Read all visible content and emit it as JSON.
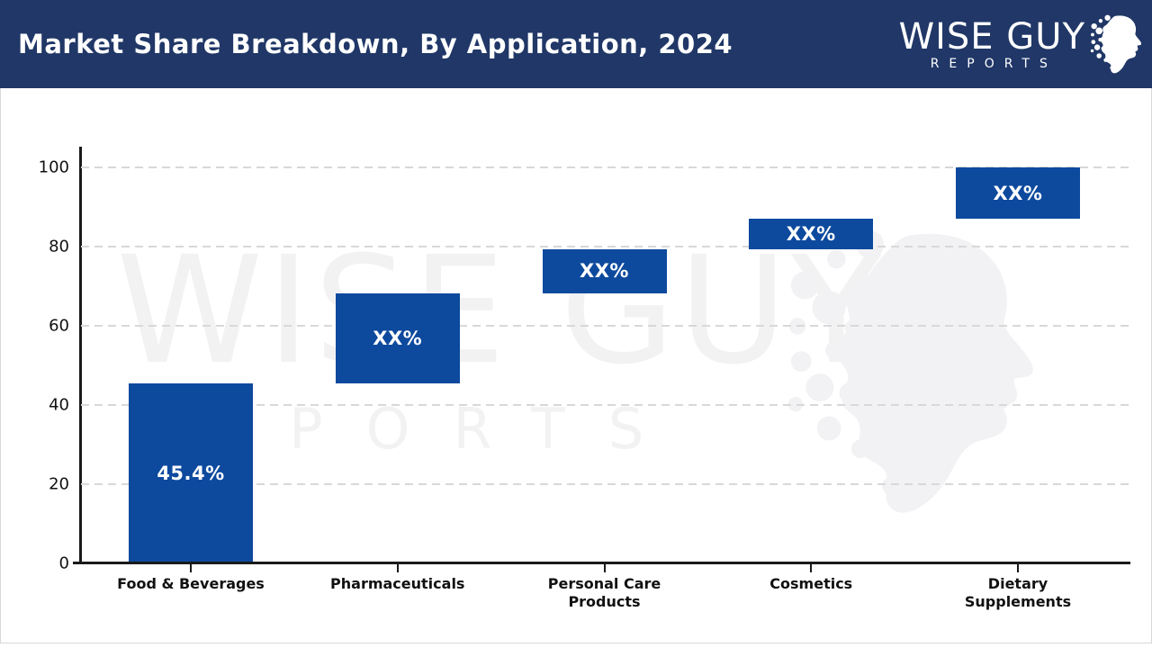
{
  "header": {
    "title": "Market Share Breakdown, By Application, 2024",
    "logo": {
      "line1": "WISE GUY",
      "line2": "REPORTS"
    }
  },
  "watermark": {
    "line1": "WISE GUY",
    "line2": "REPORTS"
  },
  "colors": {
    "header_bg": "#203767",
    "bar": "#0D4A9E",
    "bar_label": "#FFFFFF",
    "axis": "#1A1A1A",
    "grid": "#D8D8D8",
    "watermark": "#F2F2F3"
  },
  "chart_data": {
    "type": "bar",
    "subtype": "waterfall",
    "title": "Market Share Breakdown, By Application, 2024",
    "categories": [
      "Food & Beverages",
      "Pharmaceuticals",
      "Personal Care Products",
      "Cosmetics",
      "Dietary Supplements"
    ],
    "category_label_lines": [
      [
        "Food & Beverages"
      ],
      [
        "Pharmaceuticals"
      ],
      [
        "Personal Care",
        "Products"
      ],
      [
        "Cosmetics"
      ],
      [
        "Dietary",
        "Supplements"
      ]
    ],
    "segments": [
      {
        "category": "Food & Beverages",
        "start": 0,
        "end": 45.4,
        "label": "45.4%"
      },
      {
        "category": "Pharmaceuticals",
        "start": 45.4,
        "end": 68.2,
        "label": "XX%"
      },
      {
        "category": "Personal Care Products",
        "start": 68.2,
        "end": 79.4,
        "label": "XX%"
      },
      {
        "category": "Cosmetics",
        "start": 79.4,
        "end": 87.0,
        "label": "XX%"
      },
      {
        "category": "Dietary Supplements",
        "start": 87.0,
        "end": 100.0,
        "label": "XX%"
      }
    ],
    "ylim": [
      0,
      105
    ],
    "yticks": [
      0,
      20,
      40,
      60,
      80,
      100
    ],
    "xlabel": "",
    "ylabel": "",
    "grid": "horizontal-dashed",
    "legend": "none"
  }
}
